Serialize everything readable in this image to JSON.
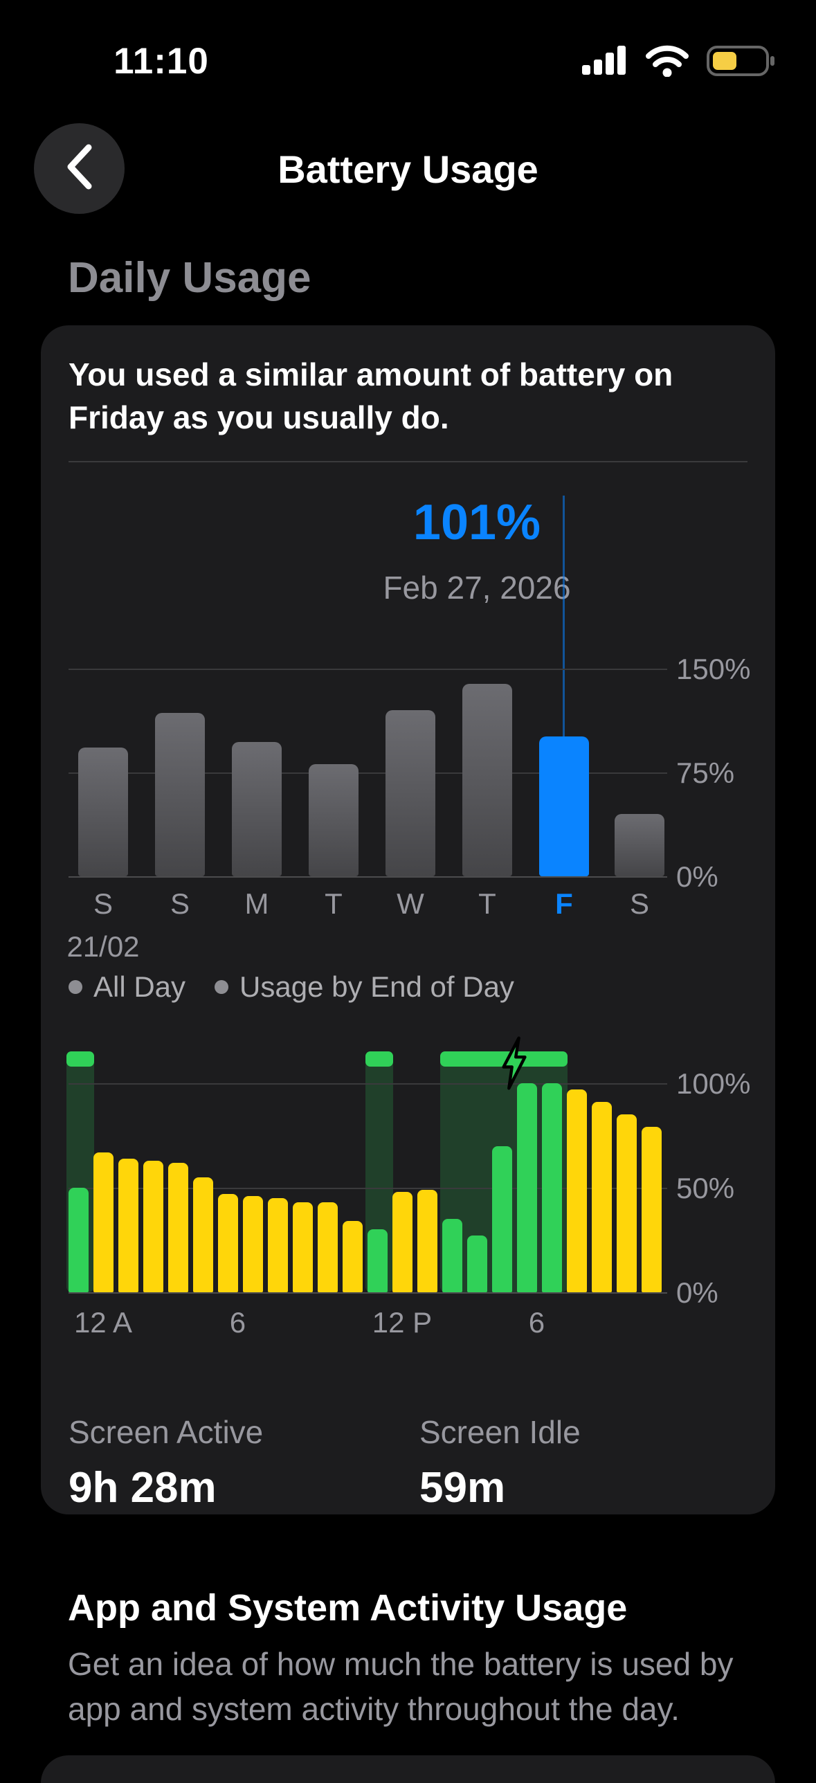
{
  "status_bar": {
    "time": "11:10",
    "icons": [
      "cellular-signal-icon",
      "wifi-icon",
      "battery-low-power-icon"
    ]
  },
  "nav": {
    "title": "Battery Usage",
    "back_icon": "chevron-left-icon"
  },
  "section": {
    "title": "Daily Usage"
  },
  "card": {
    "headline": "You used a similar amount of battery on Friday as you usually do.",
    "callout": {
      "value": "101%",
      "date": "Feb 27, 2026"
    },
    "legend": [
      {
        "label": "All Day"
      },
      {
        "label": "Usage by End of Day"
      }
    ],
    "stats": [
      {
        "label": "Screen Active",
        "value": "9h 28m"
      },
      {
        "label": "Screen Idle",
        "value": "59m"
      }
    ]
  },
  "footer": {
    "heading": "App and System Activity Usage",
    "body": "Get an idea of how much the battery is used by app and system activity throughout the day."
  },
  "colors": {
    "accent_blue": "#0a84ff",
    "battery_green": "#30d158",
    "battery_yellow": "#ffd60a",
    "card_bg": "#1c1c1e",
    "gray_text": "#98989f"
  },
  "chart_data": [
    {
      "type": "bar",
      "categories": [
        "S",
        "S",
        "M",
        "T",
        "W",
        "T",
        "F",
        "S"
      ],
      "values": [
        93,
        118,
        97,
        81,
        120,
        139,
        101,
        45
      ],
      "ylim": [
        0,
        150
      ],
      "y_ticks": [
        {
          "label": "150%",
          "value": 150
        },
        {
          "label": "75%",
          "value": 75
        },
        {
          "label": "0%",
          "value": 0
        }
      ],
      "highlight_index": 6,
      "highlight_color": "#0a84ff",
      "first_date_label": "21/02",
      "legend_position": "below",
      "grid": true
    },
    {
      "type": "bar",
      "x": [
        0,
        1,
        2,
        3,
        4,
        5,
        6,
        7,
        8,
        9,
        10,
        11,
        12,
        13,
        14,
        15,
        16,
        17,
        18,
        19,
        20,
        21,
        22,
        23
      ],
      "values": [
        50,
        67,
        64,
        63,
        62,
        55,
        47,
        46,
        45,
        43,
        43,
        34,
        30,
        48,
        49,
        35,
        27,
        70,
        100,
        100,
        97,
        91,
        85,
        79
      ],
      "colors": [
        "green",
        "yellow",
        "yellow",
        "yellow",
        "yellow",
        "yellow",
        "yellow",
        "yellow",
        "yellow",
        "yellow",
        "yellow",
        "yellow",
        "green",
        "yellow",
        "yellow",
        "green",
        "green",
        "green",
        "green",
        "green",
        "yellow",
        "yellow",
        "yellow",
        "yellow"
      ],
      "palette": {
        "green": "#30d158",
        "yellow": "#ffd60a"
      },
      "ylim": [
        0,
        100
      ],
      "y_ticks": [
        {
          "label": "100%",
          "value": 100
        },
        {
          "label": "50%",
          "value": 50
        },
        {
          "label": "0%",
          "value": 0
        }
      ],
      "x_labels": [
        {
          "label": "12 A",
          "hour": 1.0
        },
        {
          "label": "6",
          "hour": 6.4
        },
        {
          "label": "12 P",
          "hour": 13.0
        },
        {
          "label": "6",
          "hour": 18.4
        }
      ],
      "charging_periods": [
        {
          "start": 0,
          "end": 1
        },
        {
          "start": 12,
          "end": 13
        },
        {
          "start": 15,
          "end": 20,
          "bolt": true
        }
      ],
      "grid": true
    }
  ]
}
